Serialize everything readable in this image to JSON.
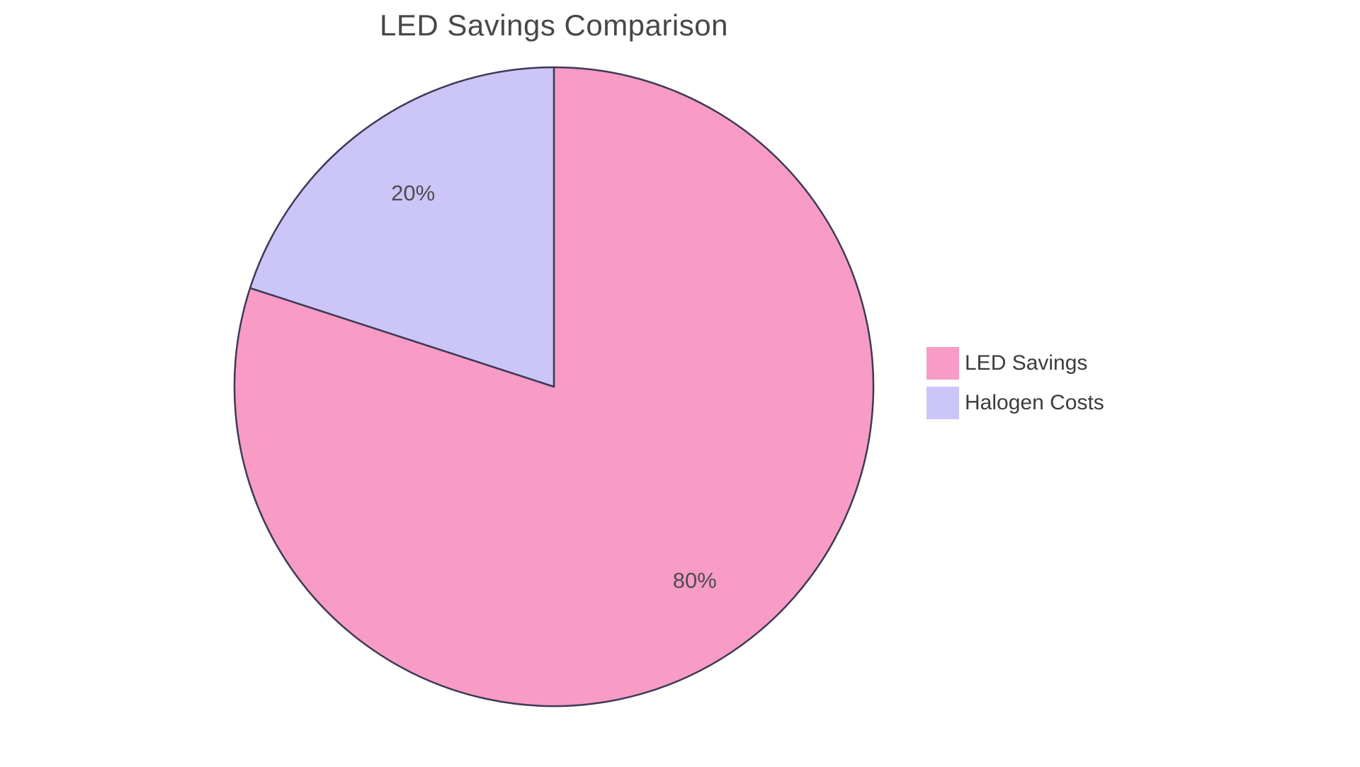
{
  "chart_data": {
    "type": "pie",
    "title": "LED Savings Comparison",
    "labels": [
      "LED Savings",
      "Halogen Costs"
    ],
    "values": [
      80,
      20
    ],
    "percent_labels": [
      "80%",
      "20%"
    ],
    "colors": [
      "#F89BC5",
      "#CCC5F7"
    ],
    "slice_border_color": "#3D3A56",
    "background_color": "#FFFFFF",
    "legend_position": "right",
    "start_angle_deg": 90,
    "direction": "clockwise"
  }
}
